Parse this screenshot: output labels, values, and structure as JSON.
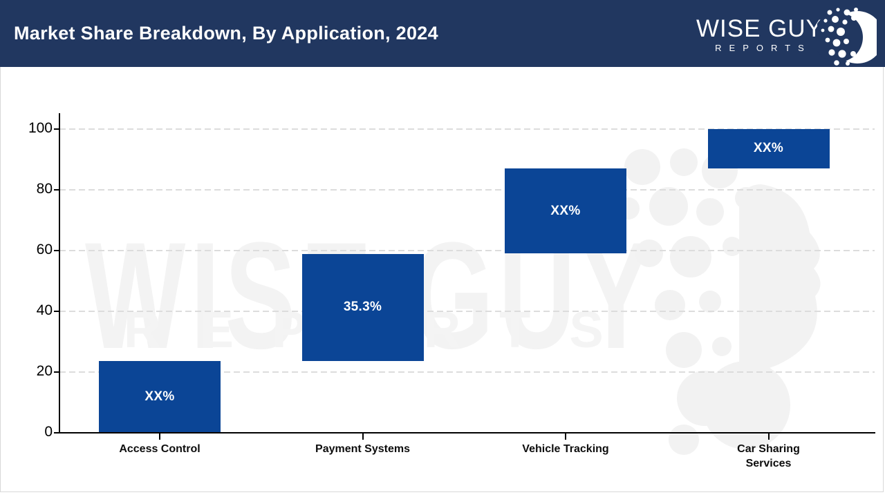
{
  "header": {
    "title": "Market Share Breakdown, By Application, 2024",
    "background_color": "#213760",
    "logo": {
      "line1": "WISE GUY",
      "line2": "REPORTS"
    }
  },
  "watermark": {
    "line1": "WISE GUY",
    "line2": "REPORTS"
  },
  "chart_data": {
    "type": "bar",
    "variant": "floating-waterfall",
    "title": "Market Share Breakdown, By Application, 2024",
    "categories": [
      "Access Control",
      "Payment Systems",
      "Vehicle Tracking",
      "Car Sharing Services"
    ],
    "xtick_labels": [
      "Access Control",
      "Payment Systems",
      "Vehicle Tracking",
      "Car Sharing\nServices"
    ],
    "segments": [
      {
        "category": "Access Control",
        "start": 0,
        "end": 23.6,
        "label": "XX%"
      },
      {
        "category": "Payment Systems",
        "start": 23.6,
        "end": 58.9,
        "label": "35.3%"
      },
      {
        "category": "Vehicle Tracking",
        "start": 59.0,
        "end": 87.0,
        "label": "XX%"
      },
      {
        "category": "Car Sharing Services",
        "start": 87.1,
        "end": 100,
        "label": "XX%"
      }
    ],
    "ylim": [
      0,
      100
    ],
    "yticks": [
      0,
      20,
      40,
      60,
      80,
      100
    ],
    "xlabel": "",
    "ylabel": "",
    "grid": "horizontal-dashed",
    "legend": "none",
    "bar_color": "#0b4596",
    "bar_label_color": "#ffffff",
    "axis_color": "#000000",
    "gridline_color": "#dcdcdc"
  }
}
